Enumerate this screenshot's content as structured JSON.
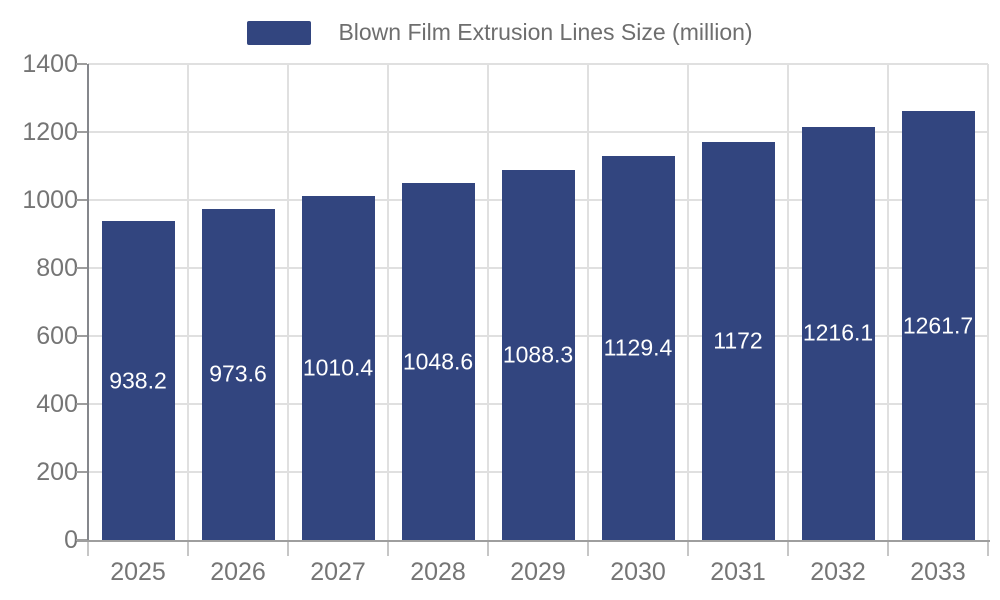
{
  "legend": {
    "label": "Blown Film Extrusion Lines Size (million)"
  },
  "colors": {
    "bar": "#32457f",
    "gridline": "#e0e0e0",
    "axis_line": "#85878c",
    "x_axis_line": "#9e9e9e",
    "tick_minor": "#c6c6c6",
    "axis_text": "#757575",
    "legend_text": "#6e6e6e",
    "bar_label": "#ffffff"
  },
  "chart_data": {
    "type": "bar",
    "title": "",
    "legend_entries": [
      "Blown Film Extrusion Lines Size (million)"
    ],
    "legend_position": "top-center",
    "categories": [
      "2025",
      "2026",
      "2027",
      "2028",
      "2029",
      "2030",
      "2031",
      "2032",
      "2033"
    ],
    "values": [
      938.2,
      973.6,
      1010.4,
      1048.6,
      1088.3,
      1129.4,
      1172,
      1216.1,
      1261.7
    ],
    "bar_labels": [
      "938.2",
      "973.6",
      "1010.4",
      "1048.6",
      "1088.3",
      "1129.4",
      "1172",
      "1216.1",
      "1261.7"
    ],
    "xlabel": "",
    "ylabel": "",
    "ylim": [
      0,
      1400
    ],
    "yticks": [
      0,
      200,
      400,
      600,
      800,
      1000,
      1200,
      1400
    ],
    "grid": true,
    "bar_label_position": "inside-center"
  }
}
